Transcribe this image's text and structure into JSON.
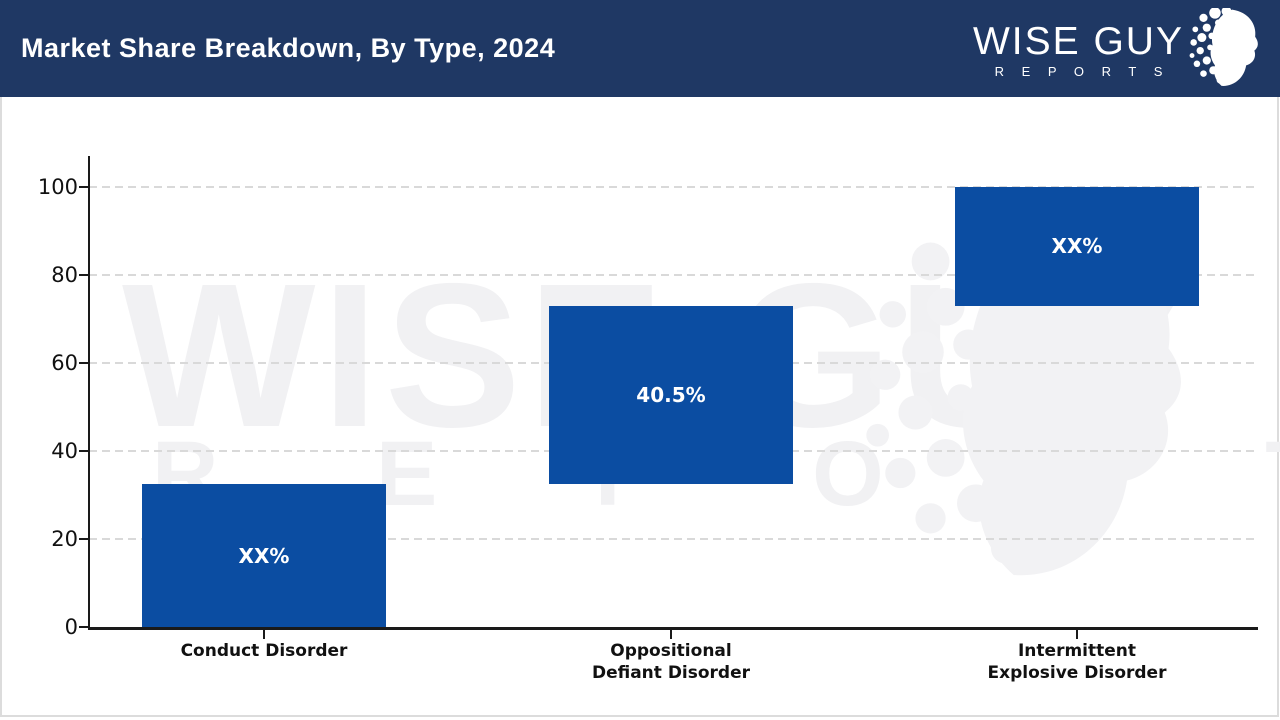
{
  "header": {
    "title": "Market Share Breakdown, By Type, 2024",
    "logo": {
      "wordmark": "WISE GUY",
      "tagline": "R E P O R T S",
      "face_icon": "dotted-face-profile"
    }
  },
  "watermark": {
    "wordmark": "WISE GUY",
    "tagline": "R E P O R T S"
  },
  "colors": {
    "header_bg": "#1f3864",
    "title_text": "#ffffff",
    "bar_fill": "#0b4da2",
    "bar_label_text": "#ffffff",
    "grid_line": "#d9d9d9",
    "axis_line": "#1a1a1a",
    "tick_label_text": "#111111",
    "watermark_text": "#f1f1f3",
    "body_border": "#dcdcdc"
  },
  "chart_data": {
    "type": "bar",
    "variant": "waterfall",
    "title": "Market Share Breakdown, By Type, 2024",
    "categories": [
      "Conduct Disorder",
      "Oppositional\nDefiant Disorder",
      "Intermittent\nExplosive Disorder"
    ],
    "segments": [
      {
        "category": "Conduct Disorder",
        "start": 0,
        "end": 32.5,
        "label": "XX%"
      },
      {
        "category": "Oppositional Defiant Disorder",
        "start": 32.5,
        "end": 73,
        "label": "40.5%"
      },
      {
        "category": "Intermittent Explosive Disorder",
        "start": 73,
        "end": 100,
        "label": "XX%"
      }
    ],
    "xlabel": "",
    "ylabel": "",
    "ylim": [
      0,
      100
    ],
    "yticks": [
      0,
      20,
      40,
      60,
      80,
      100
    ],
    "grid": "horizontal-dashed",
    "legend": "none",
    "bar_color": "#0b4da2"
  }
}
